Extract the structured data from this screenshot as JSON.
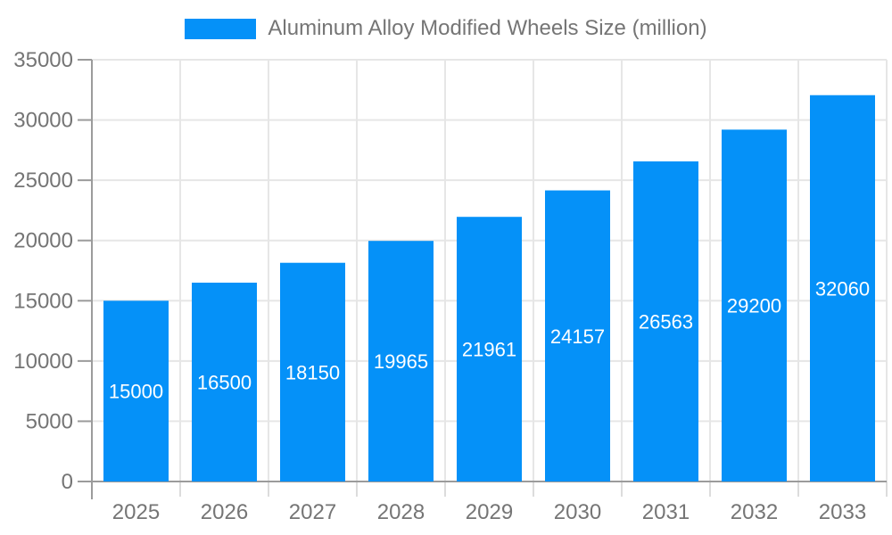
{
  "legend": {
    "label": "Aluminum Alloy Modified Wheels Size (million)"
  },
  "colors": {
    "bar": "#0591f8",
    "grid": "#e6e6e6",
    "boundary_tick": "#dcdcdc",
    "axis": "#9b9b9b",
    "text": "#757575",
    "value_label": "#ffffff",
    "background": "#ffffff"
  },
  "chart_data": {
    "type": "bar",
    "title": "Aluminum Alloy Modified Wheels Size (million)",
    "categories": [
      "2025",
      "2026",
      "2027",
      "2028",
      "2029",
      "2030",
      "2031",
      "2032",
      "2033"
    ],
    "values": [
      15000,
      16500,
      18150,
      19965,
      21961,
      24157,
      26563,
      29200,
      32060
    ],
    "xlabel": "",
    "ylabel": "",
    "ylim": [
      0,
      35000
    ],
    "ytick_step": 5000,
    "ytick_labels": [
      "0",
      "5000",
      "10000",
      "15000",
      "20000",
      "25000",
      "30000",
      "35000"
    ],
    "grid": true,
    "legend_position": "top",
    "value_labels": "inside-center-white"
  }
}
